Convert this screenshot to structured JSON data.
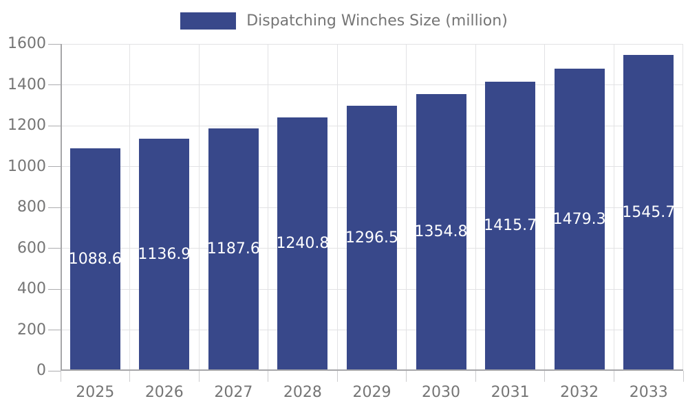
{
  "chart_data": {
    "type": "bar",
    "legend_label": "Dispatching Winches Size (million)",
    "categories": [
      "2025",
      "2026",
      "2027",
      "2028",
      "2029",
      "2030",
      "2031",
      "2032",
      "2033"
    ],
    "values": [
      1088.6,
      1136.9,
      1187.6,
      1240.8,
      1296.5,
      1354.8,
      1415.7,
      1479.3,
      1545.7
    ],
    "ylim": [
      0,
      1600
    ],
    "ytick_step": 200,
    "ytick_labels": [
      "0",
      "200",
      "400",
      "600",
      "800",
      "1000",
      "1200",
      "1400",
      "1600"
    ],
    "grid": true,
    "legend_position": "top-center",
    "bar_width_fraction": 0.726,
    "colors": {
      "bar": "#38488A",
      "bar_label": "#FFFFFF",
      "tick_label": "#757575",
      "legend_text": "#757575",
      "grid": "#E2E2E4",
      "spine": "#A6A6A8",
      "top_right_border": "#E2E2E4",
      "y_tick_mark": "#ACACAE",
      "x_tick_mark": "#CCCCCE",
      "background": "#FFFFFF"
    }
  }
}
